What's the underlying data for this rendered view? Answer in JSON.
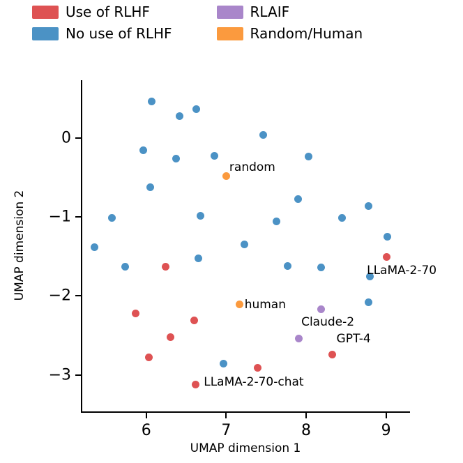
{
  "legend": {
    "items": [
      {
        "label": "Use of RLHF",
        "color": "#de5253"
      },
      {
        "label": "No use of RLHF",
        "color": "#4b92c5"
      },
      {
        "label": "RLAIF",
        "color": "#a986ca"
      },
      {
        "label": "Random/Human",
        "color": "#fb9a3e"
      }
    ]
  },
  "chart_data": {
    "type": "scatter",
    "title": "",
    "xlabel": "UMAP dimension 1",
    "ylabel": "UMAP dimension 2",
    "xlim": [
      5.2,
      9.3
    ],
    "ylim": [
      -3.46,
      0.73
    ],
    "xticks": [
      "6",
      "7",
      "8",
      "9"
    ],
    "xtick_values": [
      6,
      7,
      8,
      9
    ],
    "yticks": [
      "0",
      "−1",
      "−2",
      "−3"
    ],
    "ytick_values": [
      0,
      -1,
      -2,
      -3
    ],
    "grid": false,
    "legend_position": "top-left-outside",
    "series": [
      {
        "name": "Use of RLHF",
        "color": "#de5253",
        "points": [
          {
            "x": 6.24,
            "y": -1.63
          },
          {
            "x": 5.87,
            "y": -2.22
          },
          {
            "x": 6.6,
            "y": -2.31
          },
          {
            "x": 6.3,
            "y": -2.52
          },
          {
            "x": 6.03,
            "y": -2.78
          },
          {
            "x": 7.39,
            "y": -2.91
          },
          {
            "x": 6.62,
            "y": -3.12
          },
          {
            "x": 9.01,
            "y": -1.51
          },
          {
            "x": 8.33,
            "y": -2.74
          }
        ]
      },
      {
        "name": "No use of RLHF",
        "color": "#4b92c5",
        "points": [
          {
            "x": 6.07,
            "y": 0.46
          },
          {
            "x": 6.42,
            "y": 0.28
          },
          {
            "x": 6.63,
            "y": 0.36
          },
          {
            "x": 7.46,
            "y": 0.04
          },
          {
            "x": 5.96,
            "y": -0.16
          },
          {
            "x": 6.37,
            "y": -0.26
          },
          {
            "x": 6.85,
            "y": -0.23
          },
          {
            "x": 8.03,
            "y": -0.24
          },
          {
            "x": 6.05,
            "y": -0.62
          },
          {
            "x": 7.9,
            "y": -0.77
          },
          {
            "x": 8.78,
            "y": -0.86
          },
          {
            "x": 5.57,
            "y": -1.01
          },
          {
            "x": 6.68,
            "y": -0.99
          },
          {
            "x": 7.63,
            "y": -1.06
          },
          {
            "x": 8.45,
            "y": -1.01
          },
          {
            "x": 9.02,
            "y": -1.25
          },
          {
            "x": 5.35,
            "y": -1.38
          },
          {
            "x": 7.23,
            "y": -1.35
          },
          {
            "x": 5.74,
            "y": -1.63
          },
          {
            "x": 6.65,
            "y": -1.52
          },
          {
            "x": 7.77,
            "y": -1.62
          },
          {
            "x": 8.19,
            "y": -1.64
          },
          {
            "x": 8.8,
            "y": -1.75
          },
          {
            "x": 8.78,
            "y": -2.08
          },
          {
            "x": 6.97,
            "y": -2.86
          }
        ]
      },
      {
        "name": "RLAIF",
        "color": "#a986ca",
        "points": [
          {
            "x": 8.19,
            "y": -2.17
          },
          {
            "x": 7.91,
            "y": -2.54
          }
        ]
      },
      {
        "name": "Random/Human",
        "color": "#fb9a3e",
        "points": [
          {
            "x": 7.0,
            "y": -0.48
          },
          {
            "x": 7.17,
            "y": -2.11
          }
        ]
      }
    ],
    "annotations": [
      {
        "text": "random",
        "x": 7.04,
        "y": -0.37
      },
      {
        "text": "human",
        "x": 7.23,
        "y": -2.11
      },
      {
        "text": "LLaMA-2-70",
        "x": 8.76,
        "y": -1.68
      },
      {
        "text": "Claude-2",
        "x": 7.94,
        "y": -2.33
      },
      {
        "text": "GPT-4",
        "x": 8.38,
        "y": -2.54
      },
      {
        "text": "LLaMA-2-70-chat",
        "x": 6.72,
        "y": -3.09
      }
    ]
  }
}
